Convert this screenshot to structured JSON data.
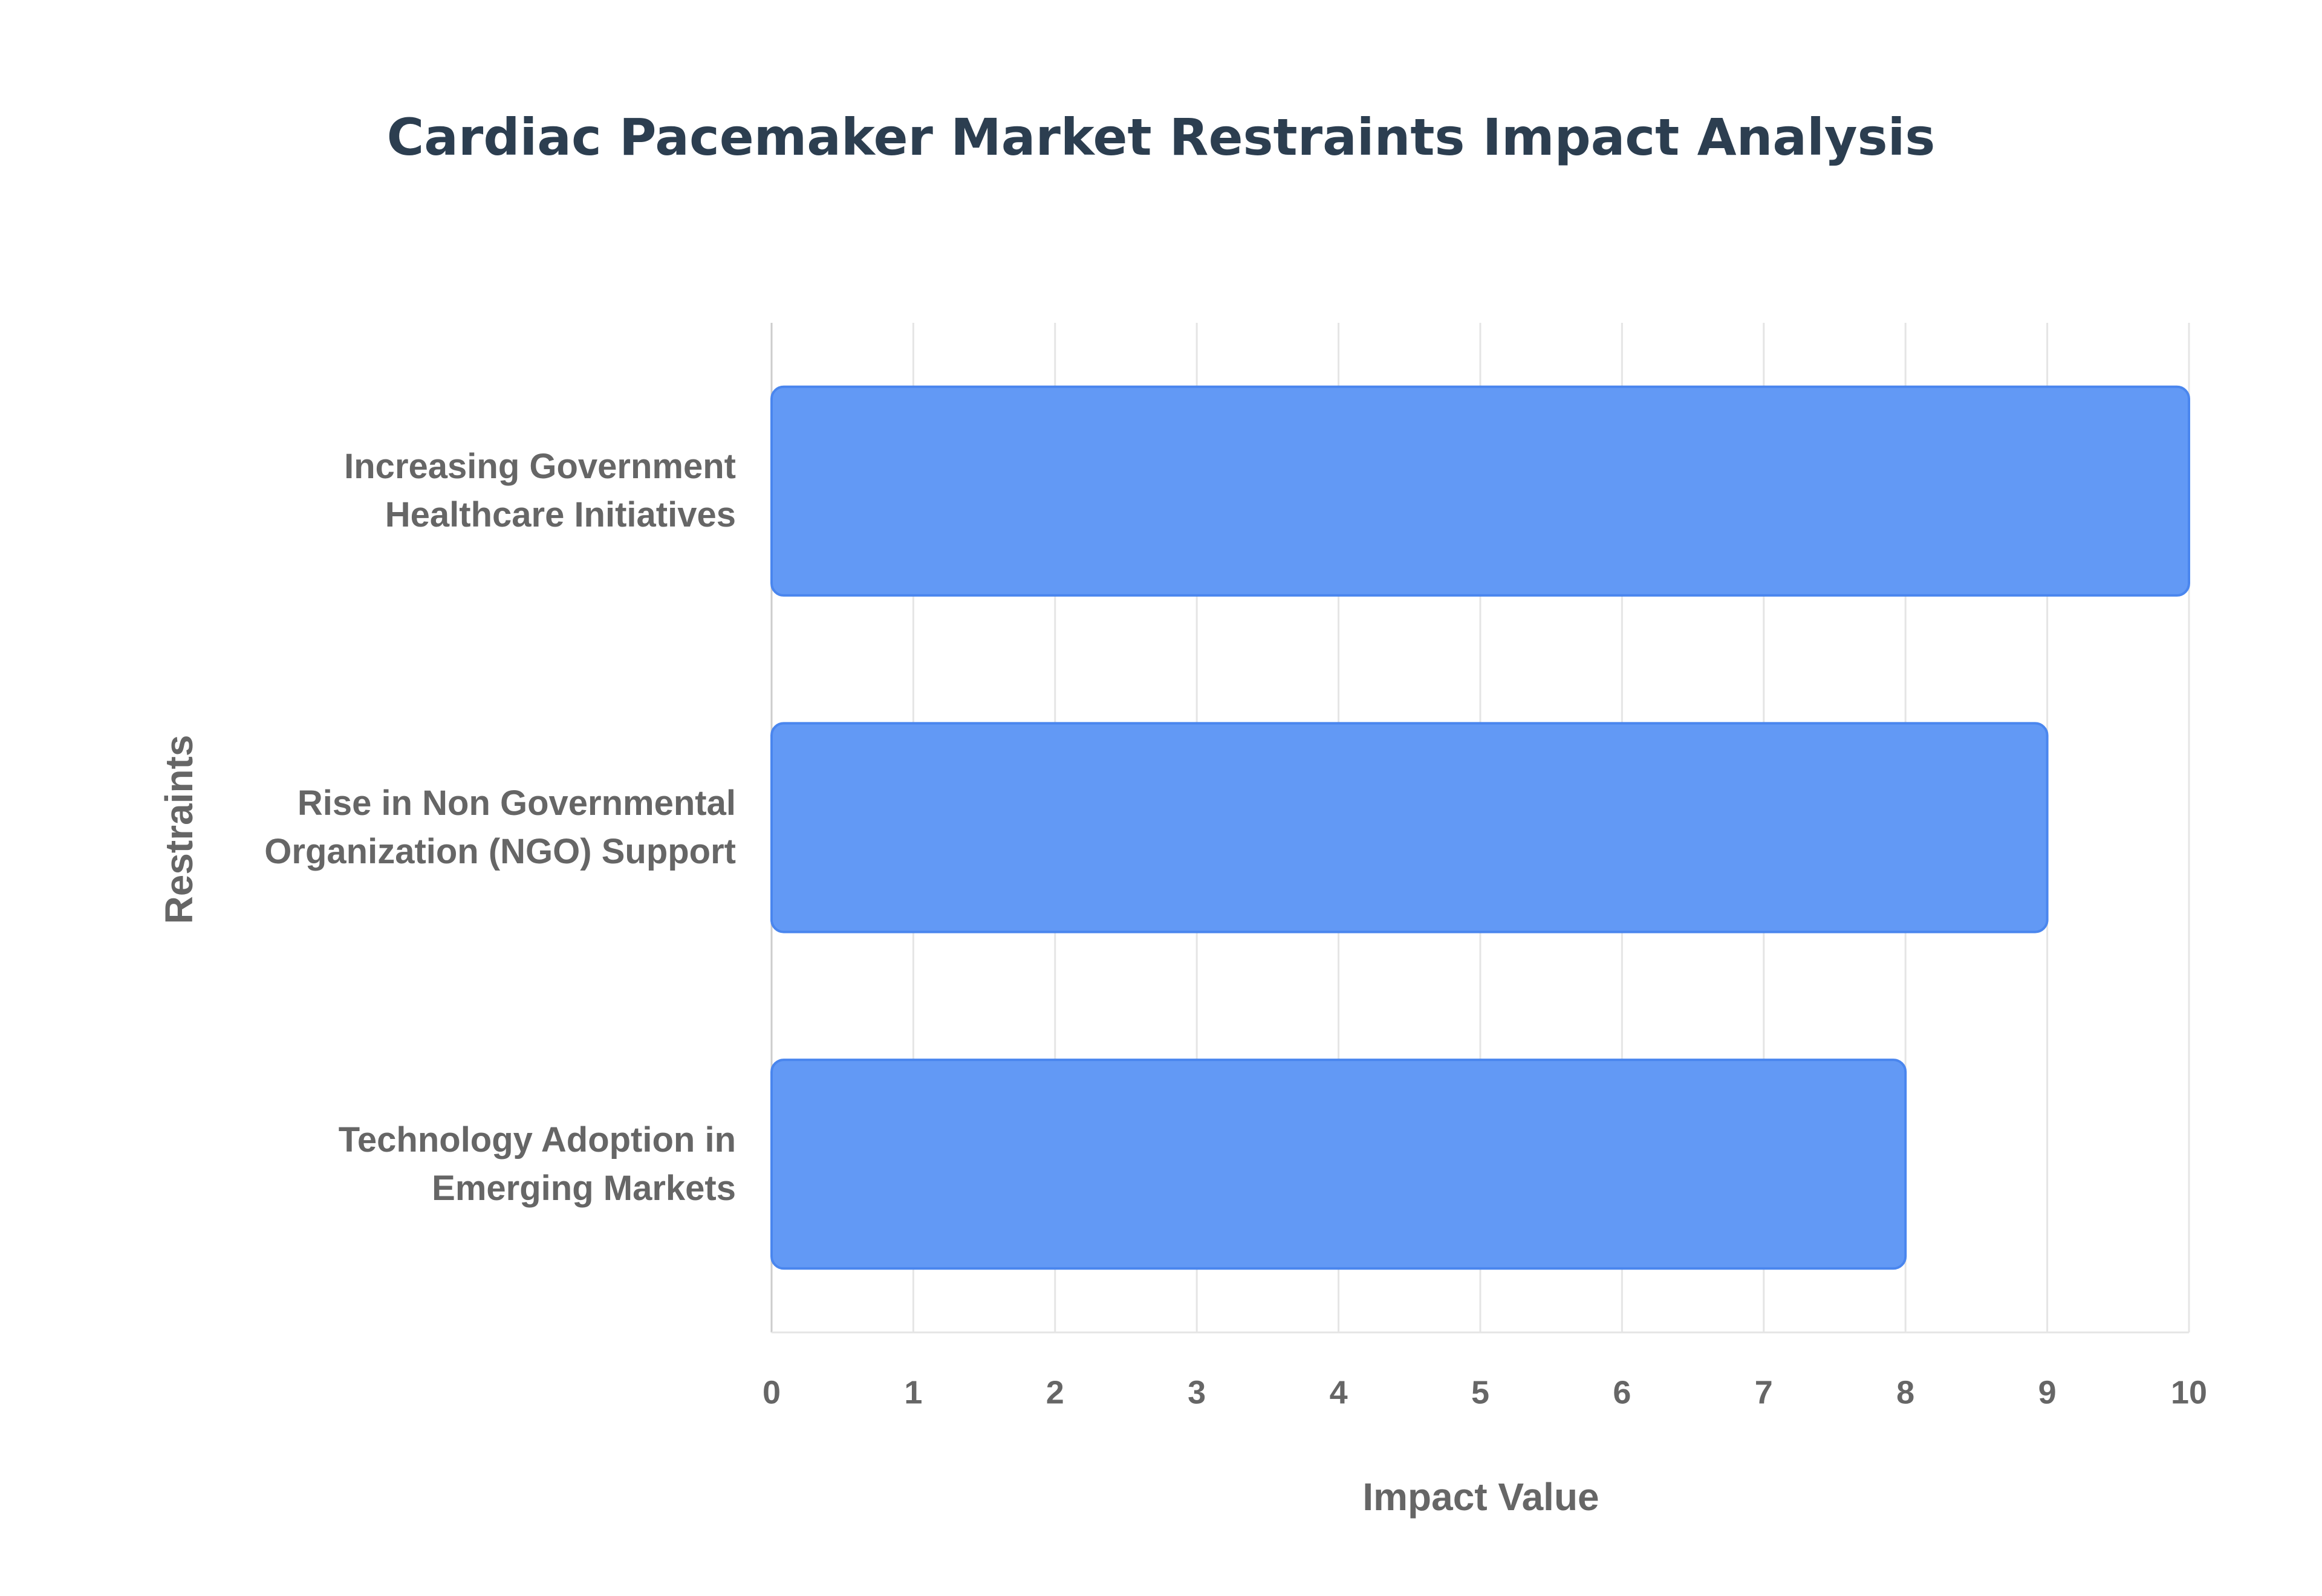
{
  "chart_data": {
    "type": "bar",
    "orientation": "horizontal",
    "title": "Cardiac Pacemaker Market Restraints Impact Analysis",
    "x_label": "Impact Value",
    "y_label": "Restraints",
    "categories": [
      "Increasing Government Healthcare Initiatives",
      "Rise in Non Governmental Organization (NGO) Support",
      "Technology Adoption in Emerging Markets"
    ],
    "values": [
      10,
      9,
      8
    ],
    "color": "#6299f5",
    "xlim": [
      0,
      10
    ],
    "xticks": [
      0,
      1,
      2,
      3,
      4,
      5,
      6,
      7,
      8,
      9,
      10
    ],
    "grid": true
  }
}
